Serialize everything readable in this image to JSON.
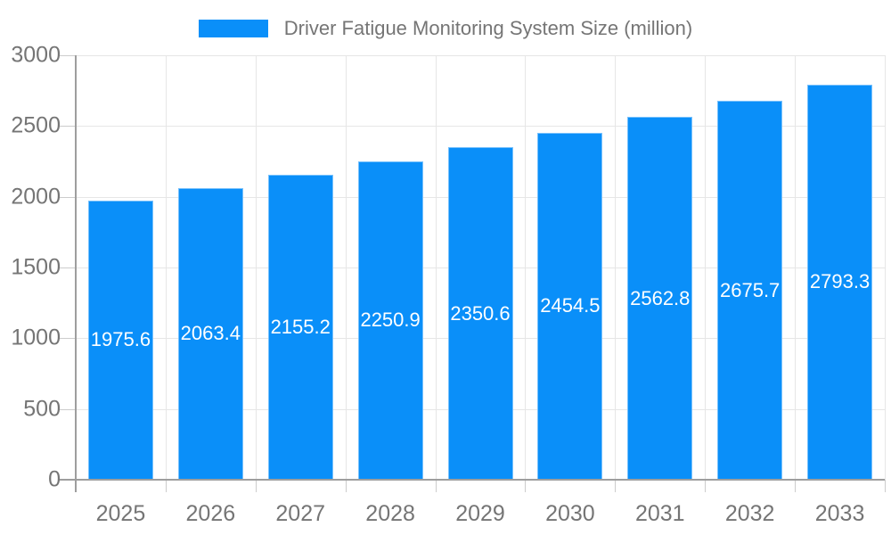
{
  "legend": {
    "label": "Driver Fatigue Monitoring System Size (million)",
    "swatch_color": "#0a8ff9"
  },
  "chart_data": {
    "type": "bar",
    "title": "Driver Fatigue Monitoring System Size (million)",
    "categories": [
      "2025",
      "2026",
      "2027",
      "2028",
      "2029",
      "2030",
      "2031",
      "2032",
      "2033"
    ],
    "values": [
      1975.6,
      2063.4,
      2155.2,
      2250.9,
      2350.6,
      2454.5,
      2562.8,
      2675.7,
      2793.3
    ],
    "xlabel": "",
    "ylabel": "",
    "ylim": [
      0,
      3000
    ],
    "yticks": [
      0,
      500,
      1000,
      1500,
      2000,
      2500,
      3000
    ],
    "grid": true,
    "legend_position": "top",
    "value_labels_inside_bars": true
  },
  "colors": {
    "bar": "#0a8ff9",
    "axis_text": "#757575",
    "gridline": "#e6e6e6",
    "axis_line": "#9e9e9e",
    "tick_mark": "#cccccc",
    "value_label": "#ffffff",
    "background": "#ffffff"
  }
}
